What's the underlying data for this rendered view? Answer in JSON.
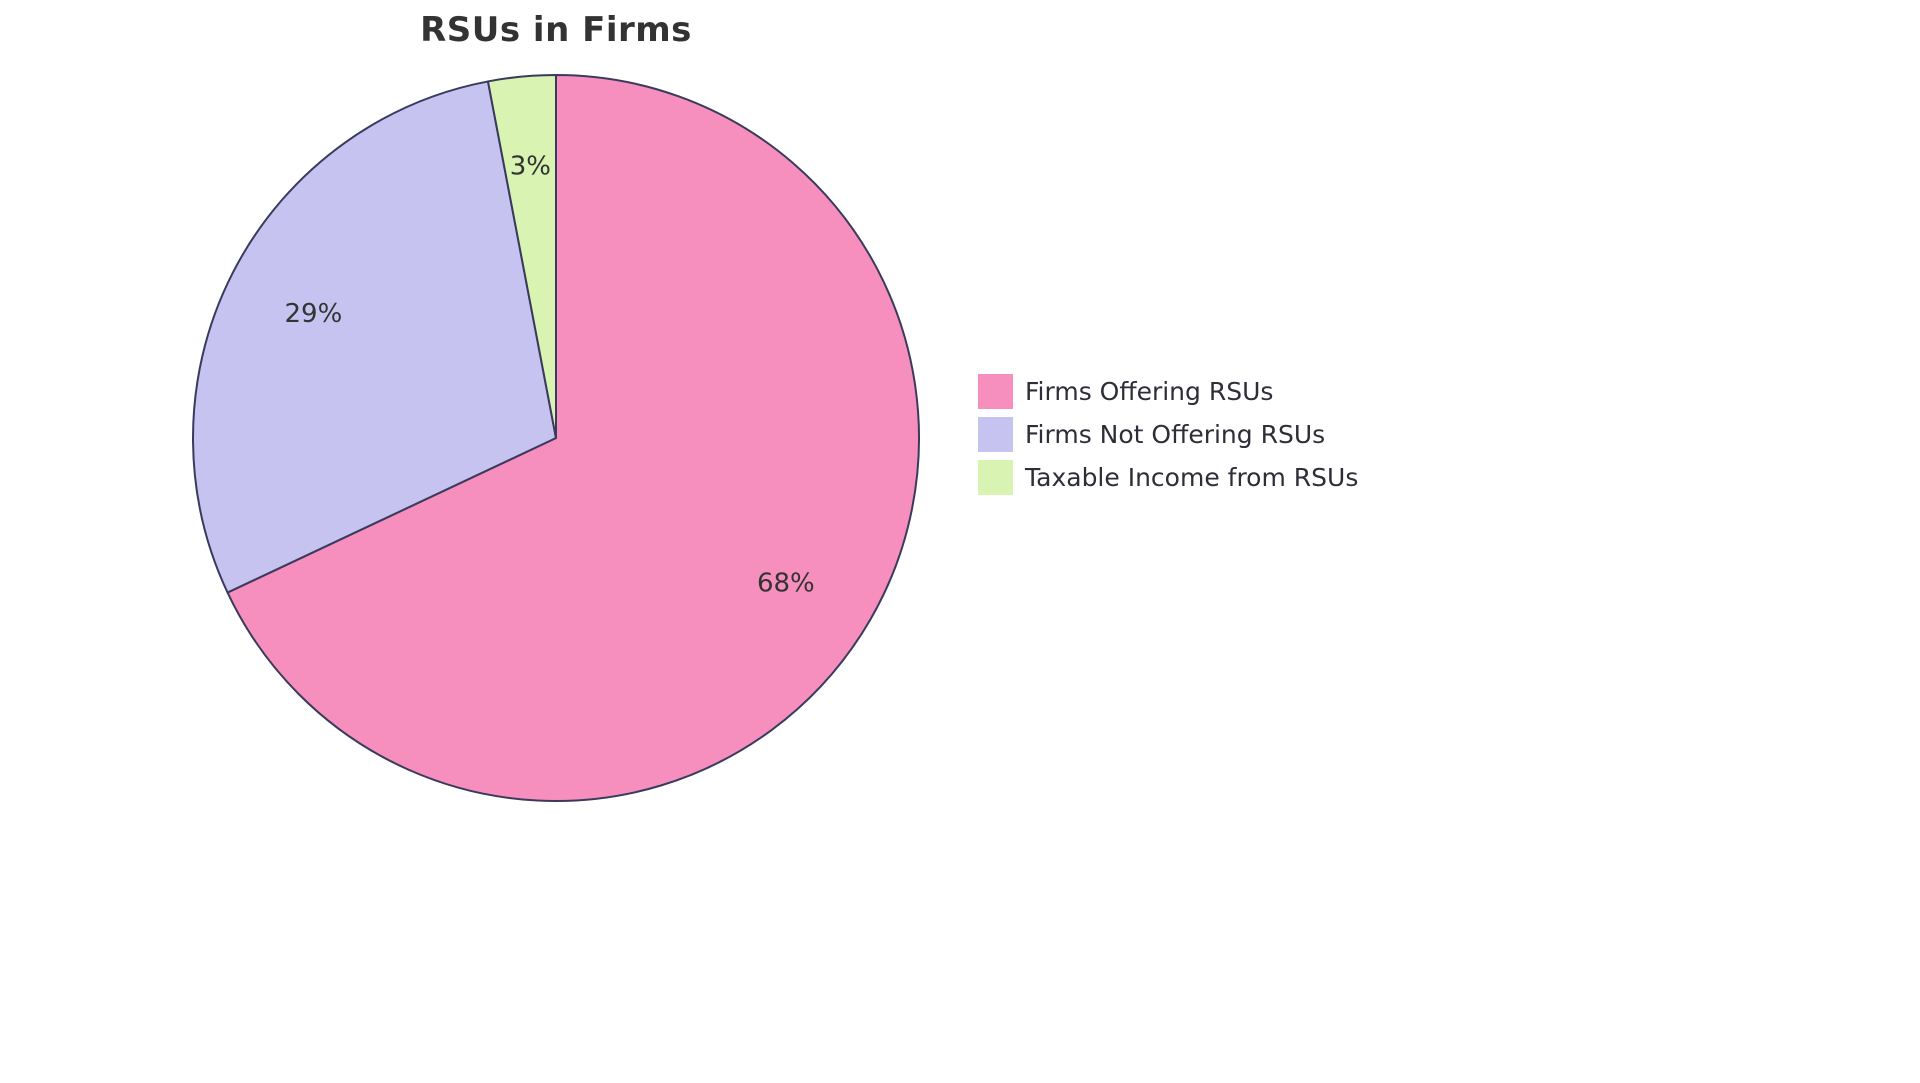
{
  "chart_data": {
    "type": "pie",
    "title": "RSUs in Firms",
    "labels": [
      "Firms Offering RSUs",
      "Firms Not Offering RSUs",
      "Taxable Income from RSUs"
    ],
    "values": [
      68,
      29,
      3
    ],
    "pct_labels": [
      "68%",
      "29%",
      "3%"
    ],
    "colors": [
      "#F78FBE",
      "#C6C3F1",
      "#D8F3B2"
    ],
    "outline_color": "#3A3A5C",
    "text_color": "#333333",
    "legend_position": "right",
    "start_angle_deg": 0,
    "direction": "clockwise"
  }
}
